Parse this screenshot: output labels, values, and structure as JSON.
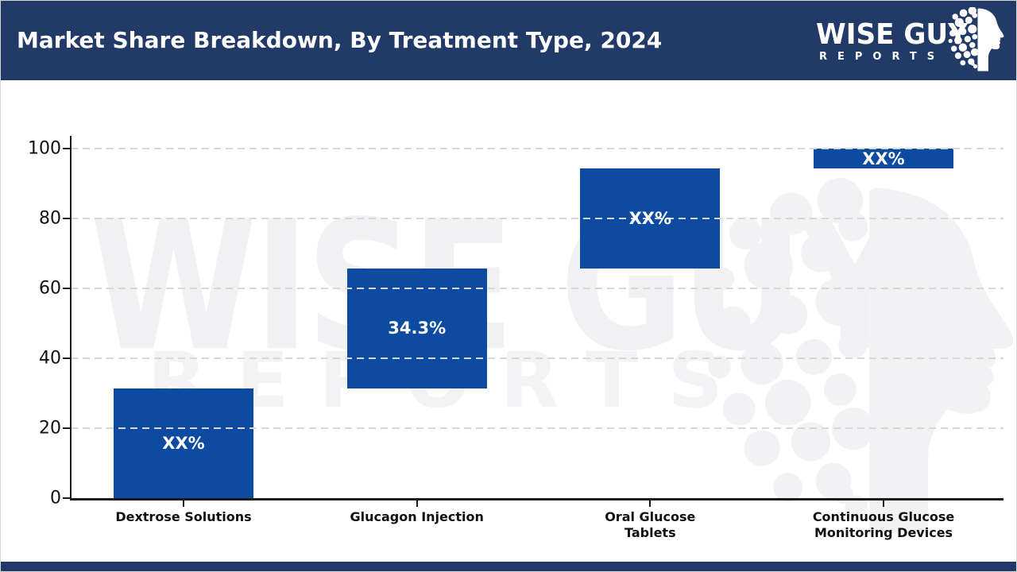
{
  "header": {
    "background": "#213a67",
    "title": "Market Share Breakdown, By Treatment Type, 2024",
    "logo": {
      "wordmark": "WISE GUY",
      "subtext": "REPORTS"
    }
  },
  "watermark": {
    "wordmark": "WISE GUY",
    "subtext": "REPORTS"
  },
  "footer": {
    "background": "#213a67"
  },
  "chart_data": {
    "type": "bar",
    "variant": "waterfall",
    "title": "Market Share Breakdown, By Treatment Type, 2024",
    "xlabel": "",
    "ylabel": "",
    "ylim": [
      0,
      100
    ],
    "yticks": [
      0,
      20,
      40,
      60,
      80,
      100
    ],
    "grid": {
      "axis": "y",
      "style": "dashed",
      "color": "#d8d8d8",
      "drawn_above_bars": true
    },
    "legend": null,
    "bar_color": "#0d4ba0",
    "categories": [
      "Dextrose Solutions",
      "Glucagon Injection",
      "Oral Glucose Tablets",
      "Continuous Glucose Monitoring Devices"
    ],
    "category_label_lines": [
      [
        "Dextrose Solutions"
      ],
      [
        "Glucagon Injection"
      ],
      [
        "Oral Glucose",
        "Tablets"
      ],
      [
        "Continuous Glucose",
        "Monitoring Devices"
      ]
    ],
    "segments": [
      {
        "category": "Dextrose Solutions",
        "start": 0,
        "end": 31.4,
        "value": 31.4,
        "label": "XX%"
      },
      {
        "category": "Glucagon Injection",
        "start": 31.4,
        "end": 65.7,
        "value": 34.3,
        "label": "34.3%"
      },
      {
        "category": "Oral Glucose Tablets",
        "start": 65.7,
        "end": 94.3,
        "value": 28.6,
        "label": "XX%"
      },
      {
        "category": "Continuous Glucose Monitoring Devices",
        "start": 94.3,
        "end": 100.0,
        "value": 5.7,
        "label": "XX%"
      }
    ]
  }
}
